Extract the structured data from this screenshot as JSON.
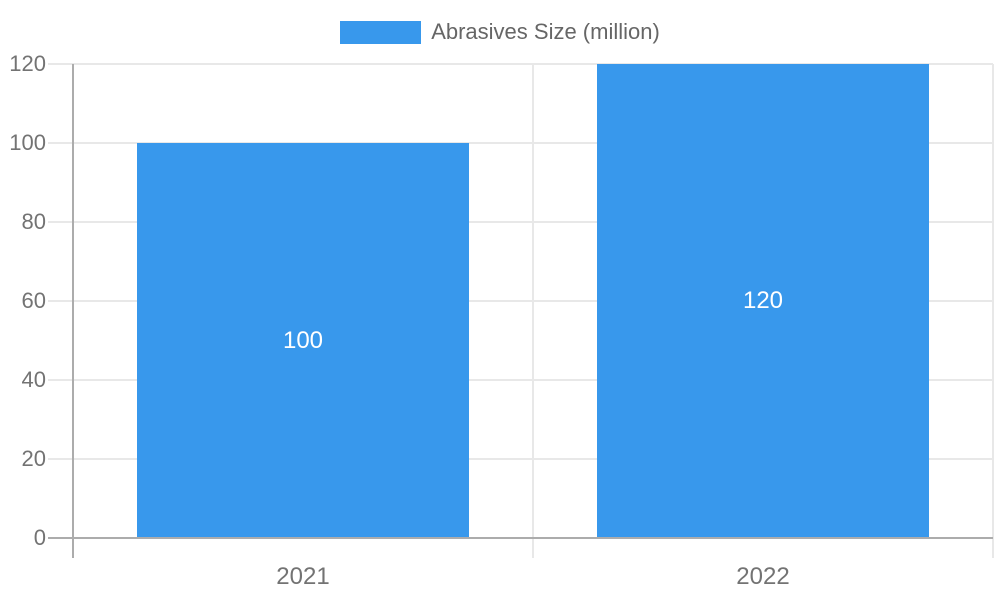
{
  "chart_data": {
    "type": "bar",
    "title": "",
    "legend": {
      "position": "top",
      "label": "Abrasives Size (million)"
    },
    "categories": [
      "2021",
      "2022"
    ],
    "series": [
      {
        "name": "Abrasives Size (million)",
        "values": [
          100,
          120
        ]
      }
    ],
    "data_labels": [
      "100",
      "120"
    ],
    "xlabel": "",
    "ylabel": "",
    "y_axis": {
      "min": 0,
      "max": 120,
      "tick_step": 20,
      "ticks": [
        0,
        20,
        40,
        60,
        80,
        100,
        120
      ]
    },
    "grid": "horizontal-gridlines-and-category-boundaries",
    "colors": {
      "bar": "#3898EC",
      "grid_line": "#E8E8E8",
      "axis_line": "#ACACAC",
      "tick_label": "#737373",
      "legend_label": "#666666",
      "data_label": "#FFFFFF",
      "background": "#FFFFFF"
    }
  }
}
